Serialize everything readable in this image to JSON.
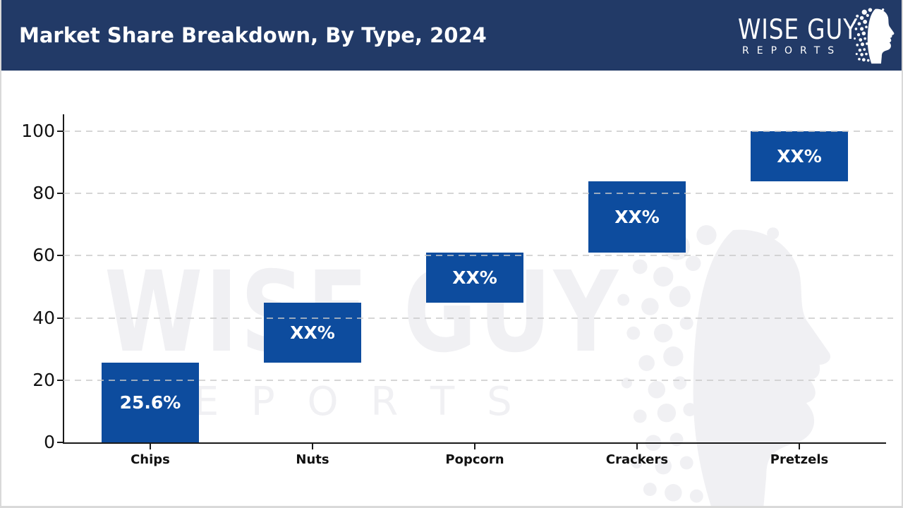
{
  "header": {
    "title": "Market Share Breakdown, By Type, 2024",
    "logo": {
      "wordmark": "WISE GUY",
      "subtext": "REPORTS"
    }
  },
  "watermark": {
    "wordmark": "WISE GUY",
    "subtext": "R E P O R T S"
  },
  "colors": {
    "header_bg": "#223A67",
    "header_text": "#FFFFFF",
    "bar_fill": "#0D4C9E",
    "bar_label": "#FFFFFF",
    "grid_line": "#C9C9C9",
    "axis_line": "#1A1A1A",
    "tick_text": "#111111",
    "watermark": "#F0F0F3",
    "page_bg": "#FFFFFF"
  },
  "chart_data": {
    "type": "bar",
    "subtype": "floating-waterfall-segments",
    "title": "Market Share Breakdown, By Type, 2024",
    "xlabel": "",
    "ylabel": "",
    "ylim": [
      0,
      105
    ],
    "yticks": [
      0,
      20,
      40,
      60,
      80,
      100
    ],
    "grid": "horizontal-dashed",
    "legend": "none",
    "categories": [
      "Chips",
      "Nuts",
      "Popcorn",
      "Crackers",
      "Pretzels"
    ],
    "bars": [
      {
        "category": "Chips",
        "start": 0,
        "end": 25.6,
        "label": "25.6%"
      },
      {
        "category": "Nuts",
        "start": 25.6,
        "end": 45.0,
        "label": "XX%"
      },
      {
        "category": "Popcorn",
        "start": 45.0,
        "end": 61.0,
        "label": "XX%"
      },
      {
        "category": "Crackers",
        "start": 61.0,
        "end": 84.0,
        "label": "XX%"
      },
      {
        "category": "Pretzels",
        "start": 84.0,
        "end": 100.0,
        "label": "XX%"
      }
    ]
  }
}
